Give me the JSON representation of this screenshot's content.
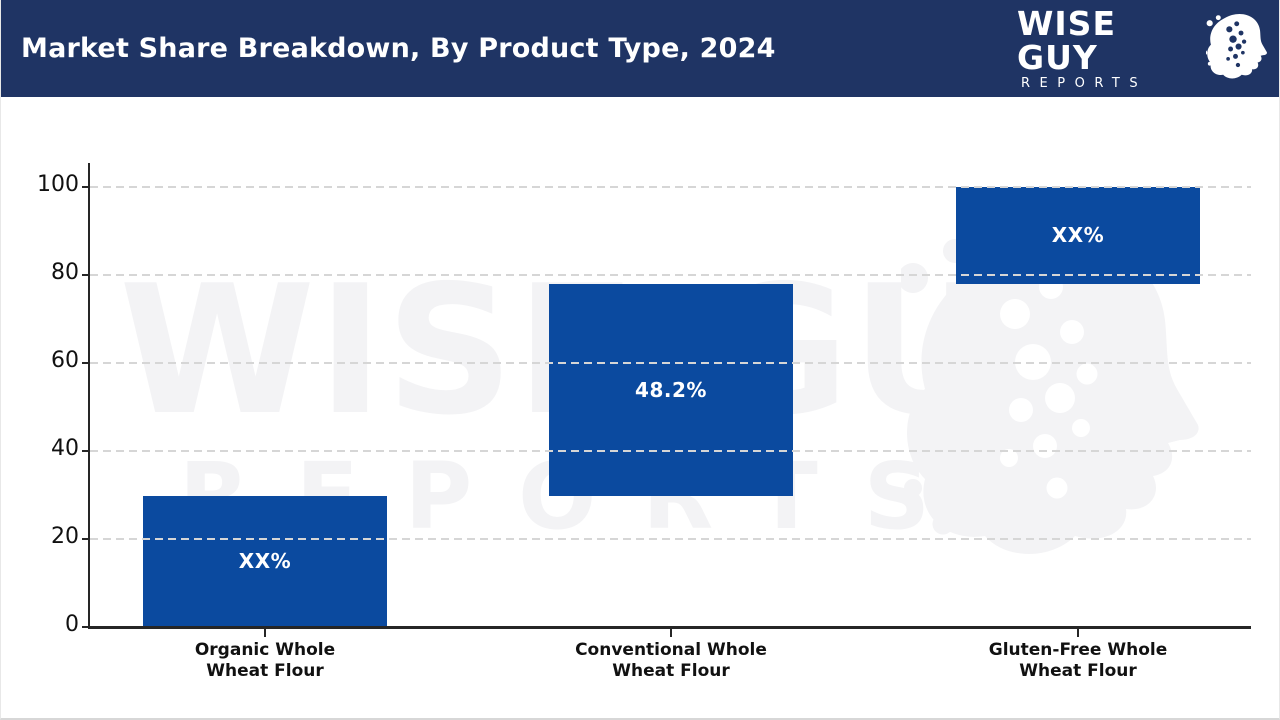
{
  "header": {
    "title": "Market Share Breakdown, By Product Type, 2024",
    "logo_line1": "WISE GUY",
    "logo_line2": "REPORTS"
  },
  "watermark": {
    "line1": "WISE GUY",
    "line2": "REPORTS"
  },
  "chart_data": {
    "type": "bar",
    "variant": "floating-segment-bars",
    "title": "Market Share Breakdown, By Product Type, 2024",
    "ylabel": "",
    "xlabel": "",
    "ylim": [
      0,
      100
    ],
    "yticks": [
      0,
      20,
      40,
      60,
      80,
      100
    ],
    "grid": "horizontal-dashed",
    "grid_color": "#d6d6d6",
    "bar_color": "#0b4a9f",
    "axis_color": "#262626",
    "categories": [
      [
        "Organic Whole",
        "Wheat Flour"
      ],
      [
        "Conventional Whole",
        "Wheat Flour"
      ],
      [
        "Gluten-Free Whole",
        "Wheat Flour"
      ]
    ],
    "bars": [
      {
        "start": 0,
        "end": 29.8,
        "value_label": "XX%"
      },
      {
        "start": 29.8,
        "end": 78.0,
        "value_label": "48.2%"
      },
      {
        "start": 78.0,
        "end": 100.0,
        "value_label": "XX%"
      }
    ]
  }
}
